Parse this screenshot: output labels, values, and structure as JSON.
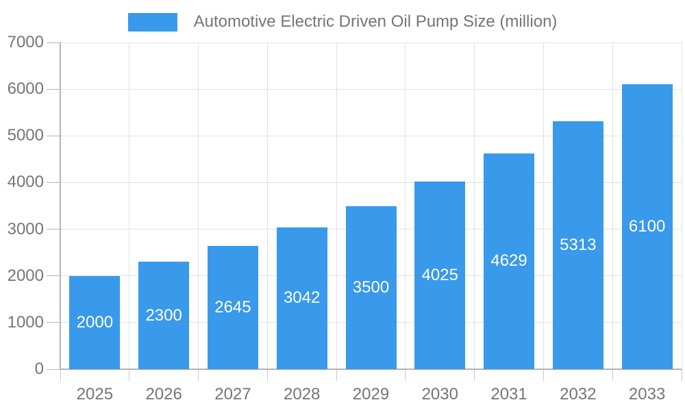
{
  "legend": {
    "label": "Automotive Electric Driven Oil Pump Size (million)"
  },
  "colors": {
    "bar": "#3999EB",
    "bar_label": "#FFFFFF",
    "axis_text": "#757575",
    "grid_line": "#E2E2E2",
    "axis_line": "#B3B3B3",
    "tick_line": "#C9C9C9",
    "background": "#FFFFFF"
  },
  "chart_data": {
    "type": "bar",
    "title": "Automotive Electric Driven Oil Pump Size (million)",
    "categories": [
      "2025",
      "2026",
      "2027",
      "2028",
      "2029",
      "2030",
      "2031",
      "2032",
      "2033"
    ],
    "series": [
      {
        "name": "Automotive Electric Driven Oil Pump Size (million)",
        "values": [
          2000,
          2300,
          2645,
          3042,
          3500,
          4025,
          4629,
          5313,
          6100
        ]
      }
    ],
    "value_labels_shown": true,
    "xlabel": "",
    "ylabel": "",
    "ylim": [
      0,
      7000
    ],
    "ytick_step": 1000,
    "yticks": [
      0,
      1000,
      2000,
      3000,
      4000,
      5000,
      6000,
      7000
    ],
    "grid": "both",
    "legend_position": "top-center"
  }
}
